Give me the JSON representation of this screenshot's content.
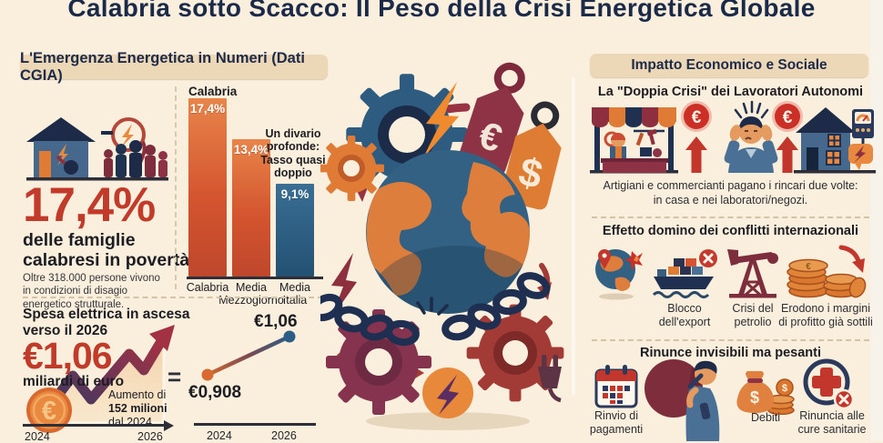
{
  "title": "Calabria sotto Scacco: Il Peso della Crisi Energetica Globale",
  "symbols": {
    "euro": "€",
    "dollar": "$",
    "equals": "="
  },
  "left_panel": {
    "header": "L'Emergenza Energetica in Numeri (Dati CGIA)",
    "poverty": {
      "big_value": "17,4%",
      "label_line1": "delle famiglie",
      "label_line2": "calabresi in povertà",
      "note": "Oltre 318.000 persone vivono in condizioni di disagio energetico strutturale."
    }
  },
  "right_panel": {
    "header": "Impatto Economico e Sociale",
    "section1": {
      "heading": "La \"Doppia Crisi\" dei Lavoratori Autonomi",
      "caption_line1": "Artigiani e commercianti pagano i rincari due volte:",
      "caption_line2": "in casa e nei laboratori/negozi."
    },
    "section2": {
      "heading": "Effetto domino dei conflitti internazionali",
      "label_export_line1": "Blocco",
      "label_export_line2": "dell'export",
      "label_oil_line1": "Crisi del",
      "label_oil_line2": "petrolio",
      "label_margins_line1": "Erodono i margini",
      "label_margins_line2": "di profitto già sottili"
    },
    "section3": {
      "heading": "Rinunce invisibili ma pesanti",
      "label_payments_line1": "Rinvio di",
      "label_payments_line2": "pagamenti",
      "label_debts": "Debiti",
      "label_health_line1": "Rinuncia alle",
      "label_health_line2": "cure sanitarie"
    }
  },
  "chart_data": [
    {
      "type": "bar",
      "series_label": "Calabria",
      "categories": [
        "Calabria",
        "Media Mezzogiorno",
        "Media Italia"
      ],
      "values": [
        17.4,
        13.4,
        9.1
      ],
      "display_values": [
        "17,4%",
        "13,4%",
        "9,1%"
      ],
      "annotation": "Un divario profonde: Tasso quasi doppio",
      "bar_colors": [
        "#d4552f",
        "#d4552f",
        "#2e5f83"
      ],
      "ylim": [
        0,
        19
      ],
      "ylabel": "",
      "xlabel": ""
    },
    {
      "type": "area",
      "title_line1": "Spesa elettrica in ascesa",
      "title_line2": "verso il 2026",
      "big_value": "€1,06",
      "unit": "miliardi di euro",
      "note_line1": "Aumento di",
      "note_line2": "152 milioni",
      "note_line3": "dal 2024",
      "x": [
        "2024",
        "2026"
      ],
      "values": [
        0.908,
        1.06
      ]
    },
    {
      "type": "line",
      "x": [
        "2024",
        "2026"
      ],
      "values": [
        0.908,
        1.06
      ],
      "point_labels": [
        "€0,908",
        "€1,06"
      ],
      "point_colors": [
        "#d96a2f",
        "#2c5d85"
      ]
    }
  ],
  "icon_names": [
    "house-energy-icon",
    "family-icon",
    "gauge-icon",
    "euro-coin-icon",
    "trend-arrow-icon",
    "globe-chained-icon",
    "gear-icon",
    "lightning-icon",
    "euro-tag-icon",
    "dollar-tag-icon",
    "chain-icon",
    "plug-icon",
    "market-stall-icon",
    "euro-rise-badge-icon",
    "stressed-person-icon",
    "house-meter-icon",
    "conflict-globe-icon",
    "export-ship-icon",
    "oil-pump-icon",
    "coin-stack-icon",
    "calendar-icon",
    "debt-burden-person-icon",
    "money-bag-icon",
    "healthcare-cross-icon"
  ]
}
